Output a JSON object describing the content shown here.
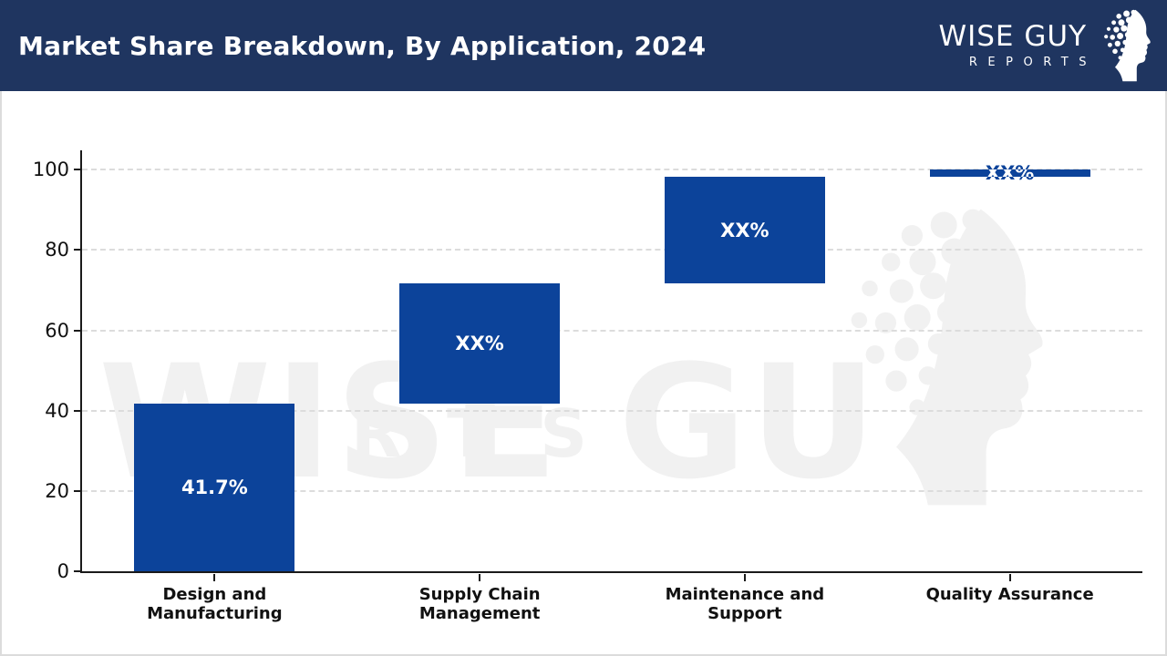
{
  "header": {
    "title": "Market Share Breakdown, By Application, 2024",
    "logo": {
      "line1": "WISE GUY",
      "line2": "REPORTS",
      "face_icon": "dotted-face-profile"
    }
  },
  "watermark": {
    "line1": "WISE GU",
    "line2": "PORTS",
    "face_icon": "dotted-face-profile"
  },
  "chart_data": {
    "type": "bar",
    "subtype": "waterfall-stacked-percentage",
    "title": "Market Share Breakdown, By Application, 2024",
    "categories": [
      "Design and\nManufacturing",
      "Supply Chain\nManagement",
      "Maintenance and\nSupport",
      "Quality Assurance"
    ],
    "segments": [
      {
        "category": "Design and Manufacturing",
        "start": 0,
        "end": 41.7,
        "label": "41.7%"
      },
      {
        "category": "Supply Chain Management",
        "start": 41.7,
        "end": 71.7,
        "label": "XX%"
      },
      {
        "category": "Maintenance and Support",
        "start": 71.7,
        "end": 98.2,
        "label": "XX%"
      },
      {
        "category": "Quality Assurance",
        "start": 98.2,
        "end": 100,
        "label": "XX%"
      }
    ],
    "yticks": [
      0,
      20,
      40,
      60,
      80,
      100
    ],
    "ylim": [
      0,
      104.8
    ],
    "xlabel": "",
    "ylabel": "",
    "grid": true,
    "gridline_style": "dashed",
    "legend_position": "none",
    "bar_color": "#0c439a"
  },
  "colors": {
    "header_bg": "#1f3560",
    "bar": "#0c439a",
    "gridline": "#dcdcdc",
    "axis": "#1a1a1a",
    "watermark": "#f1f1f1",
    "label_text": "#ffffff"
  }
}
